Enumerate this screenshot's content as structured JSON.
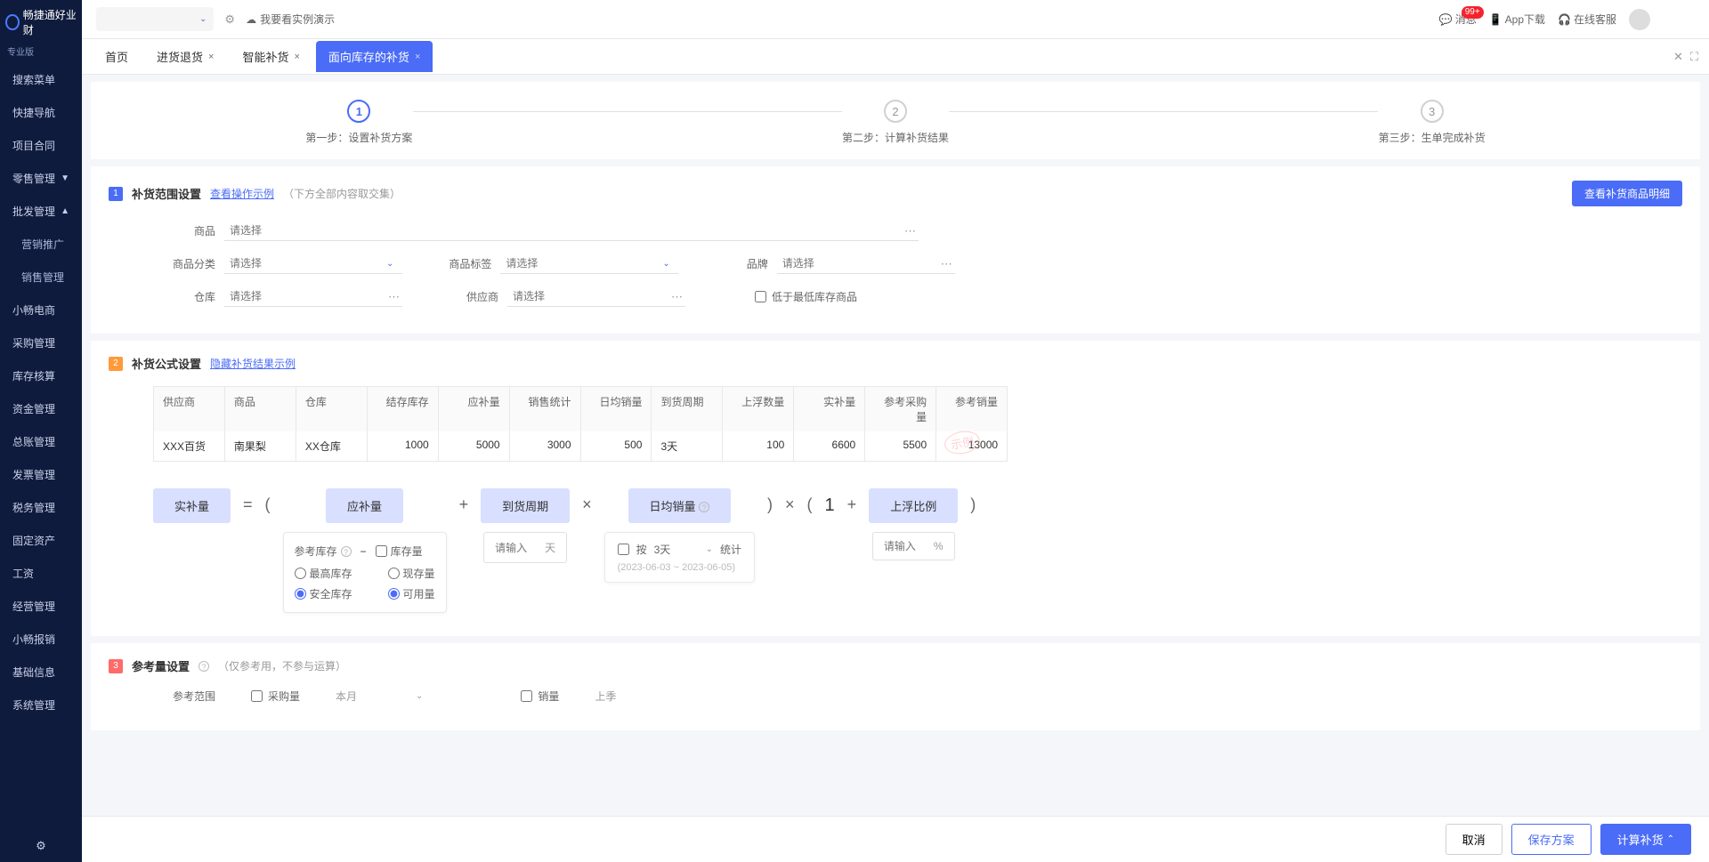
{
  "brand": {
    "name": "畅捷通好业财",
    "edition": "专业版"
  },
  "topbar": {
    "org_placeholder": "　　　　　　",
    "demo": "我要看实例演示",
    "msg": "消息",
    "msg_badge": "99+",
    "app": "App下载",
    "service": "在线客服"
  },
  "sidebar": {
    "items": [
      {
        "label": "搜索菜单"
      },
      {
        "label": "快捷导航"
      },
      {
        "label": "项目合同"
      },
      {
        "label": "零售管理",
        "arrow": "▼"
      },
      {
        "label": "批发管理",
        "arrow": "▲",
        "expanded": true,
        "children": [
          "营销推广",
          "销售管理"
        ]
      },
      {
        "label": "小畅电商"
      },
      {
        "label": "采购管理"
      },
      {
        "label": "库存核算"
      },
      {
        "label": "资金管理"
      },
      {
        "label": "总账管理"
      },
      {
        "label": "发票管理"
      },
      {
        "label": "税务管理"
      },
      {
        "label": "固定资产"
      },
      {
        "label": "工资"
      },
      {
        "label": "经营管理"
      },
      {
        "label": "小畅报销"
      },
      {
        "label": "基础信息"
      },
      {
        "label": "系统管理"
      }
    ]
  },
  "tabs": {
    "items": [
      {
        "label": "首页",
        "closable": false
      },
      {
        "label": "进货退货",
        "closable": true
      },
      {
        "label": "智能补货",
        "closable": true
      },
      {
        "label": "面向库存的补货",
        "closable": true,
        "active": true
      }
    ]
  },
  "steps": [
    {
      "num": "1",
      "label": "第一步：设置补货方案",
      "active": true
    },
    {
      "num": "2",
      "label": "第二步：计算补货结果"
    },
    {
      "num": "3",
      "label": "第三步：生单完成补货"
    }
  ],
  "scope": {
    "title": "补货范围设置",
    "link": "查看操作示例",
    "hint": "（下方全部内容取交集）",
    "btn": "查看补货商品明细",
    "fields": {
      "product": "商品",
      "category": "商品分类",
      "tag": "商品标签",
      "brand": "品牌",
      "warehouse": "仓库",
      "supplier": "供应商",
      "low_stock": "低于最低库存商品",
      "placeholder": "请选择"
    }
  },
  "formula": {
    "title": "补货公式设置",
    "link": "隐藏补货结果示例",
    "table": {
      "headers": [
        "供应商",
        "商品",
        "仓库",
        "结存库存",
        "应补量",
        "销售统计",
        "日均销量",
        "到货周期",
        "上浮数量",
        "实补量",
        "参考采购量",
        "参考销量"
      ],
      "row": [
        "XXX百货",
        "南果梨",
        "XX仓库",
        "1000",
        "5000",
        "3000",
        "500",
        "3天",
        "100",
        "6600",
        "5500",
        "13000"
      ]
    },
    "watermark": "示例",
    "blocks": {
      "actual": "实补量",
      "should": "应补量",
      "arrival": "到货周期",
      "daily": "日均销量",
      "float": "上浮比例"
    },
    "ref_stock": {
      "title": "参考库存",
      "stock_amt": "库存量",
      "opts1": [
        "最高库存",
        "安全库存"
      ],
      "opts2": [
        "现存量",
        "可用量"
      ]
    },
    "days": {
      "placeholder": "请输入",
      "unit": "天"
    },
    "stat": {
      "by": "按",
      "days": "3天",
      "suffix": "统计",
      "range": "(2023-06-03  ~  2023-06-05)"
    },
    "pct": {
      "placeholder": "请输入",
      "unit": "%"
    }
  },
  "reference": {
    "title": "参考量设置",
    "hint": "（仅参考用，不参与运算）",
    "range_label": "参考范围",
    "purchase": "采购量",
    "purchase_val": "本月",
    "sales": "销量",
    "sales_val": "上季"
  },
  "footer": {
    "cancel": "取消",
    "save": "保存方案",
    "calc": "计算补货"
  }
}
